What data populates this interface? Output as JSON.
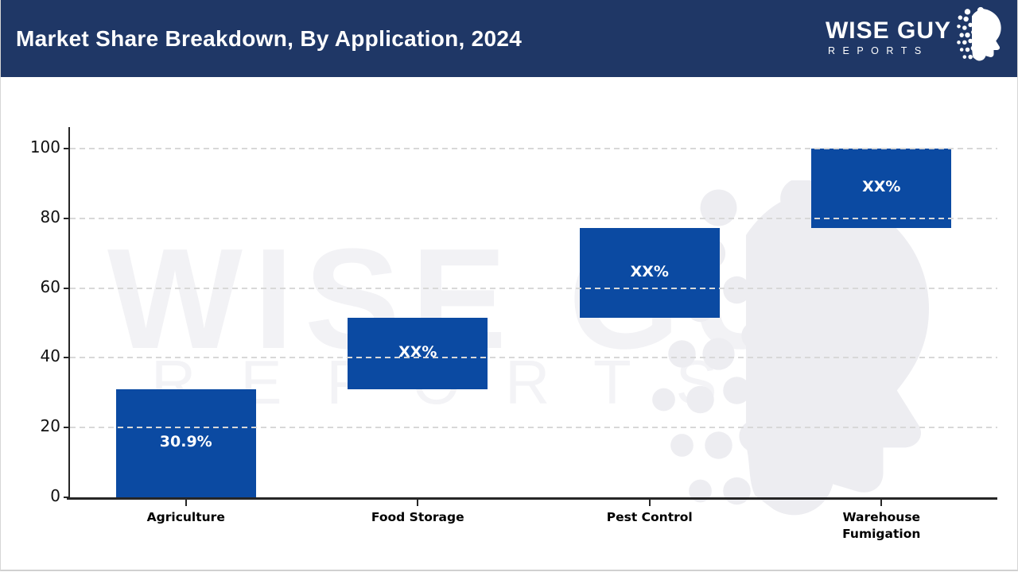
{
  "header": {
    "title": "Market Share Breakdown, By Application, 2024",
    "logo": {
      "wordmark": "WISE GUY",
      "subtext": "REPORTS"
    }
  },
  "watermark": {
    "wordmark": "WISE GUY",
    "subtext": "REPORTS"
  },
  "chart_data": {
    "type": "bar",
    "subtype": "waterfall",
    "title": "Market Share Breakdown, By Application, 2024",
    "categories": [
      "Agriculture",
      "Food Storage",
      "Pest Control",
      "Warehouse Fumigation"
    ],
    "series": [
      {
        "name": "Market share (%)",
        "segments": [
          {
            "category": "Agriculture",
            "start": 0,
            "end": 30.9,
            "label": "30.9%"
          },
          {
            "category": "Food Storage",
            "start": 30.9,
            "end": 51.4,
            "label": "XX%"
          },
          {
            "category": "Pest Control",
            "start": 51.4,
            "end": 77.2,
            "label": "XX%"
          },
          {
            "category": "Warehouse Fumigation",
            "start": 77.2,
            "end": 100,
            "label": "XX%"
          }
        ]
      }
    ],
    "xlabel": "",
    "ylabel": "",
    "ylim": [
      0,
      100
    ],
    "yticks": [
      0,
      20,
      40,
      60,
      80,
      100
    ],
    "grid": "horizontal-dashed",
    "legend": "none",
    "colors": {
      "bar": "#0b4aa2",
      "bar_label": "#ffffff",
      "grid": "#d8d8d8",
      "axis": "#262626",
      "tick_label": "#111111",
      "header_bg": "#1f3766",
      "header_text": "#ffffff",
      "watermark": "#f2f2f5"
    }
  }
}
